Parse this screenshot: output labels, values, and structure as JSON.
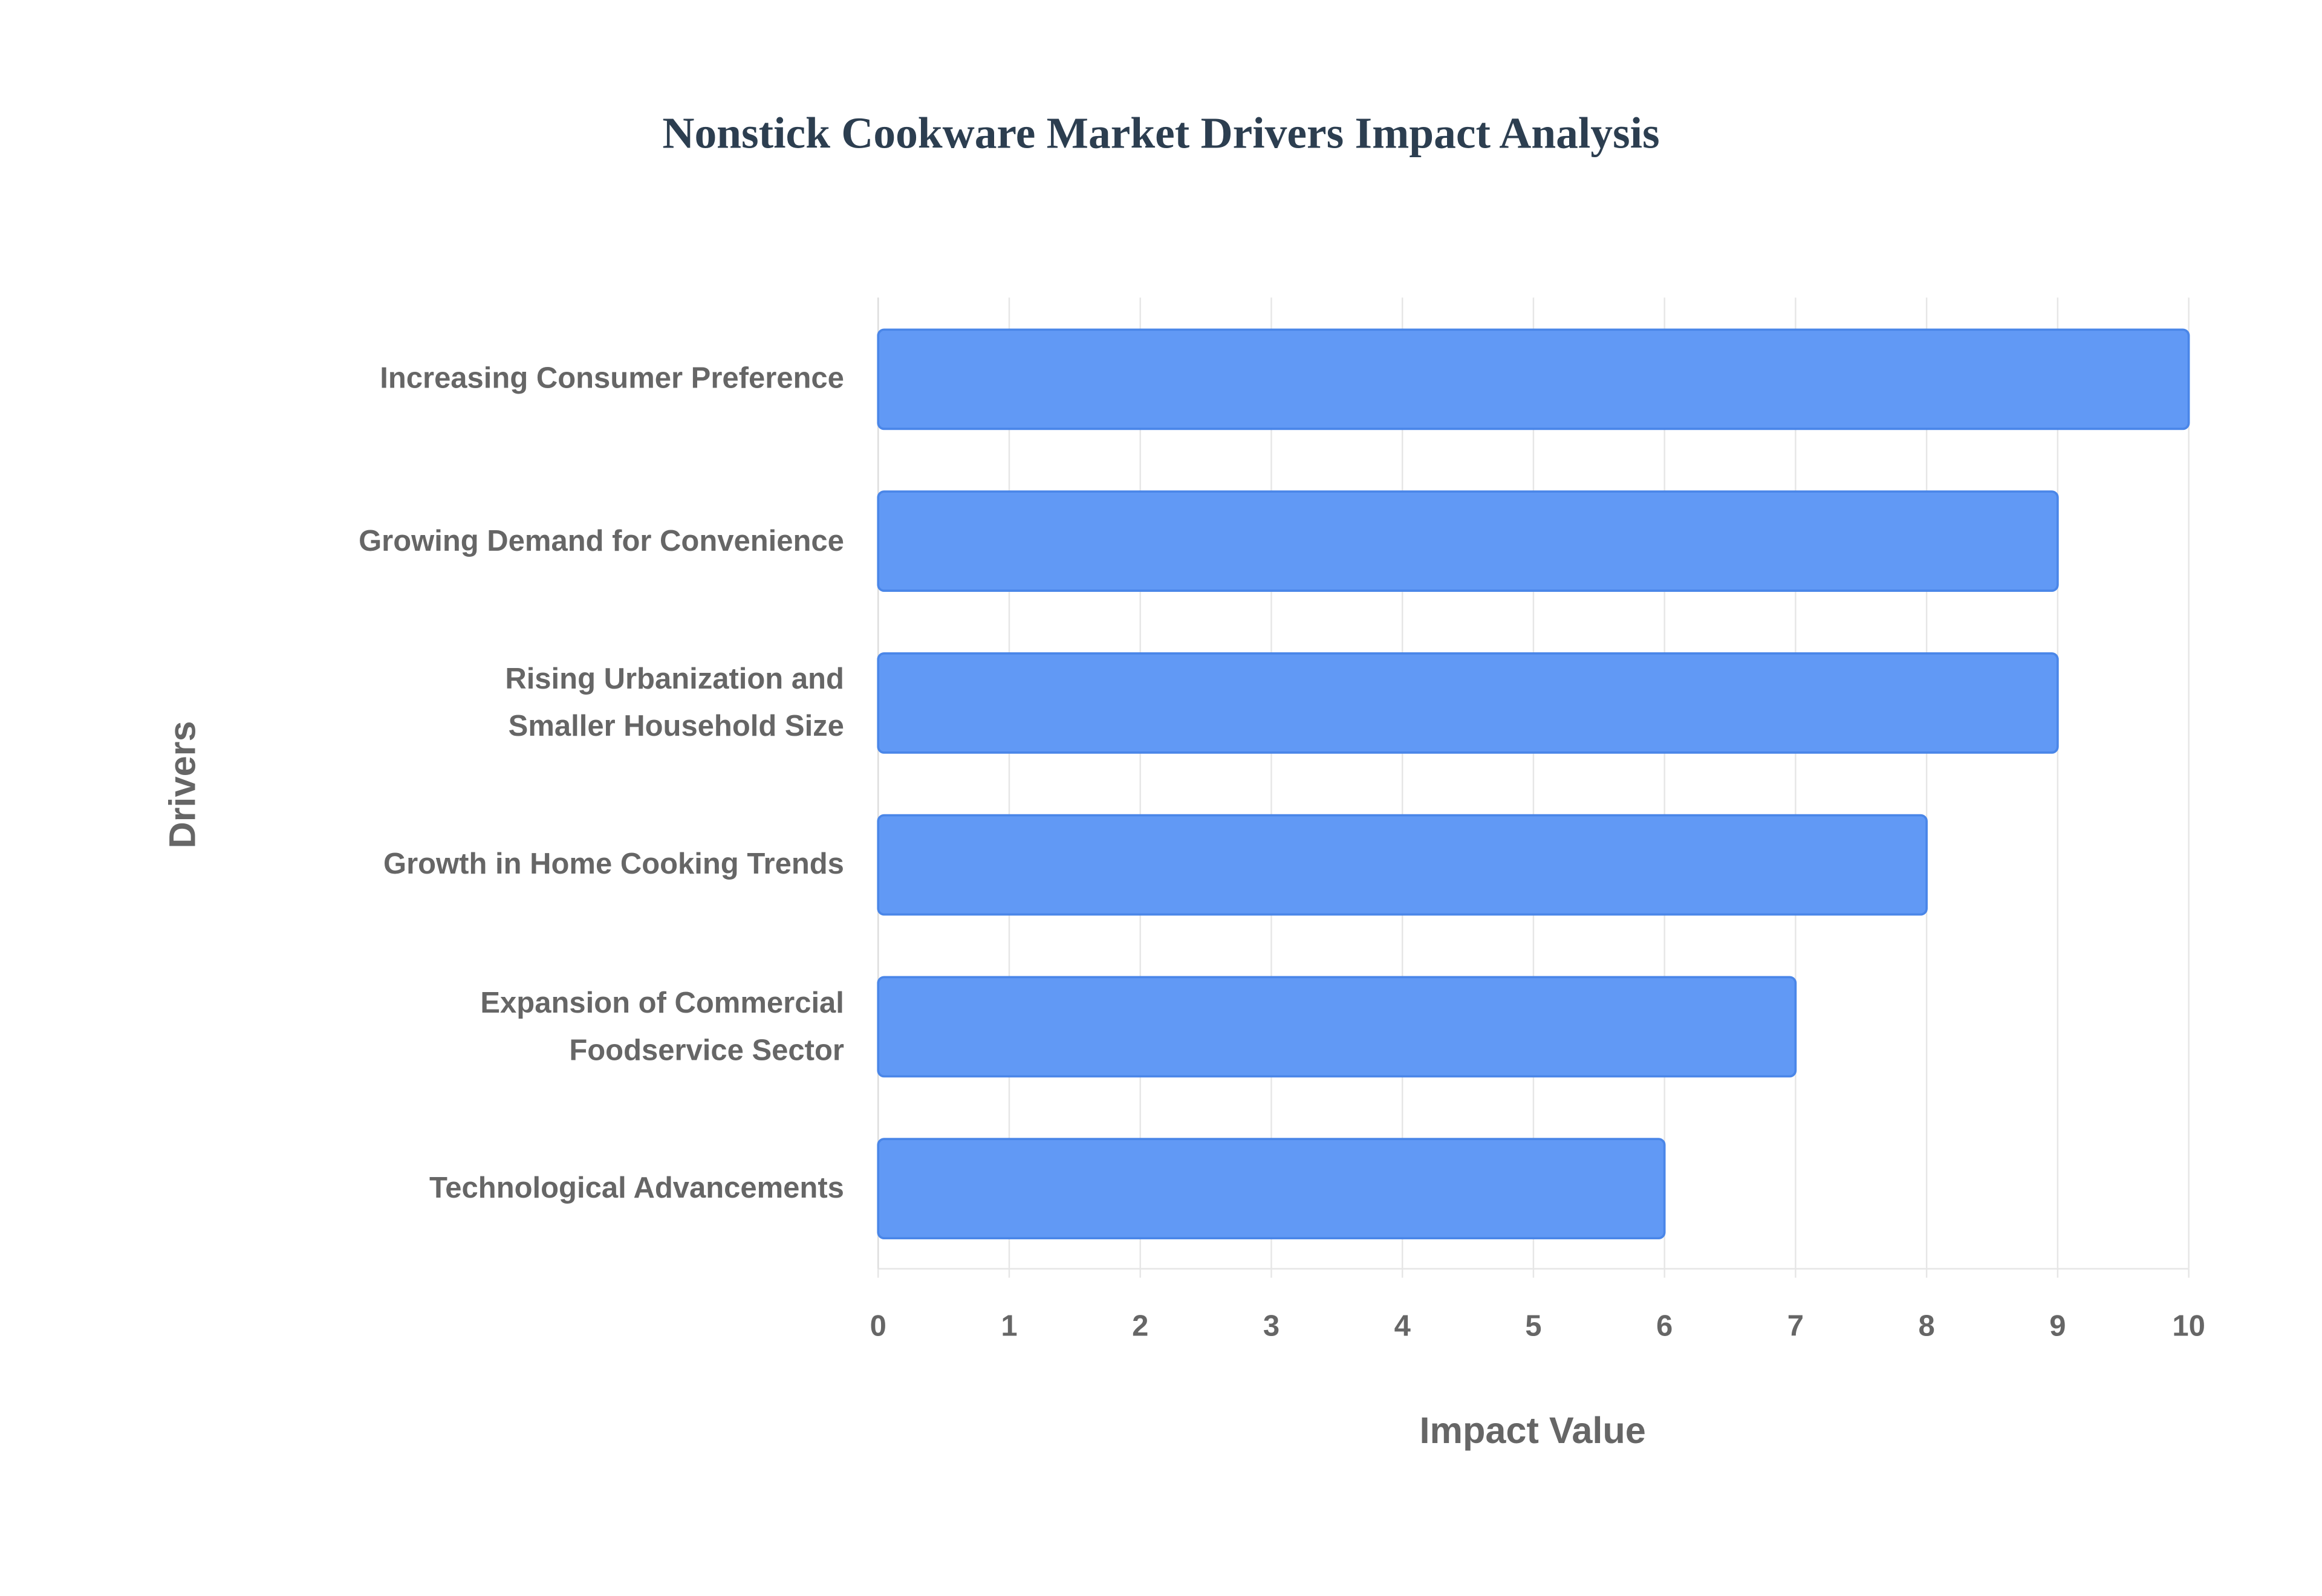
{
  "chart_data": {
    "type": "bar",
    "orientation": "horizontal",
    "title": "Nonstick Cookware Market Drivers Impact Analysis",
    "x_label": "Impact Value",
    "y_label": "Drivers",
    "categories": [
      "Increasing Consumer Preference",
      "Growing Demand for Convenience",
      "Rising Urbanization and\nSmaller Household Size",
      "Growth in Home Cooking Trends",
      "Expansion of Commercial\nFoodservice Sector",
      "Technological Advancements"
    ],
    "values": [
      10,
      9,
      9,
      8,
      7,
      6
    ],
    "color": "#6199f5",
    "xlim": [
      0,
      10
    ],
    "xticks": [
      0,
      1,
      2,
      3,
      4,
      5,
      6,
      7,
      8,
      9,
      10
    ],
    "grid": true
  }
}
